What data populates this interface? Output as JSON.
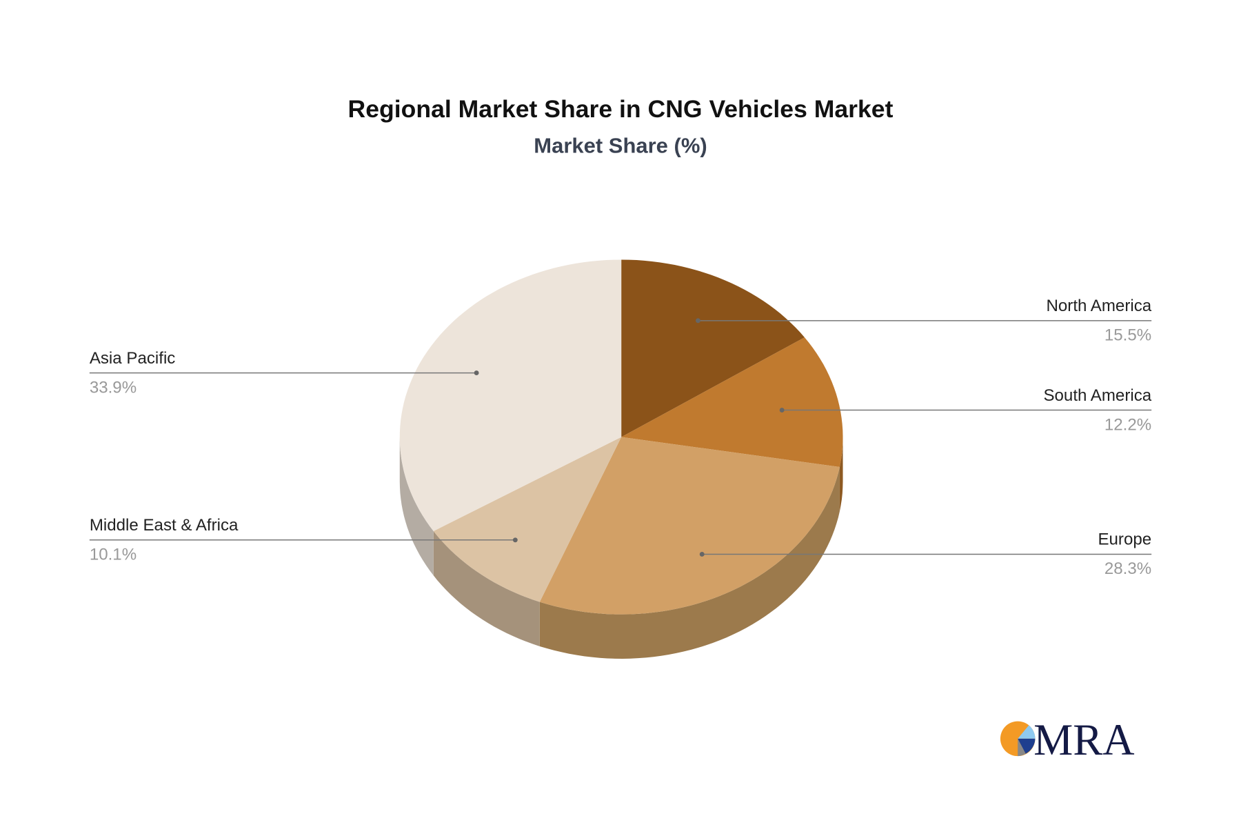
{
  "chart_data": {
    "type": "pie",
    "style": "3d",
    "title": "Regional Market Share in CNG Vehicles Market",
    "subtitle": "Market Share (%)",
    "slices": [
      {
        "label": "North America",
        "value": 15.5,
        "display": "15.5%",
        "color": "#8b5319",
        "side": "#6e4012"
      },
      {
        "label": "South America",
        "value": 12.2,
        "display": "12.2%",
        "color": "#c07a2f",
        "side": "#8e5a22"
      },
      {
        "label": "Europe",
        "value": 28.3,
        "display": "28.3%",
        "color": "#d2a066",
        "side": "#9c7a4c"
      },
      {
        "label": "Middle East & Africa",
        "value": 10.1,
        "display": "10.1%",
        "color": "#dcc3a4",
        "side": "#a5927b"
      },
      {
        "label": "Asia Pacific",
        "value": 33.9,
        "display": "33.9%",
        "color": "#ede4da",
        "side": "#b4aca3"
      }
    ]
  },
  "logo": {
    "text": "MRA",
    "colors": [
      "#f39a25",
      "#8ec9f0",
      "#1e3f8f",
      "#888888"
    ]
  }
}
